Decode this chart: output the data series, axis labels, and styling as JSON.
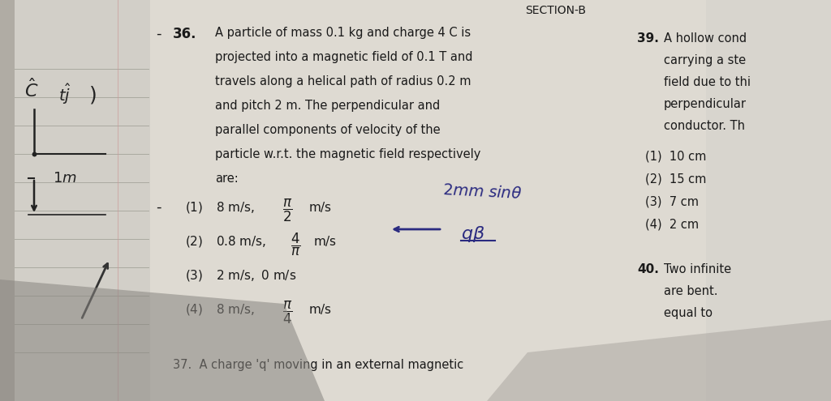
{
  "bg_color": "#b8b5ae",
  "paper_color": "#e8e5de",
  "left_color": "#d0cdc6",
  "section_header": "SECTION-B",
  "q36_num": "36.",
  "dash": "-",
  "question_lines": [
    "A particle of mass 0.1 kg and charge 4 C is",
    "projected into a magnetic field of 0.1 T and",
    "travels along a helical path of radius 0.2 m",
    "and pitch 2 m. The perpendicular and",
    "parallel components of velocity of the",
    "particle w.r.t. the magnetic field respectively",
    "are:"
  ],
  "opt1_pre": "(1)  8 m/s, ",
  "opt1_frac": "\\frac{\\pi}{2}",
  "opt1_post": " m/s",
  "opt2_pre": "(2)  0.8 m/s, ",
  "opt2_frac": "\\frac{4}{\\pi}",
  "opt2_post": " m/s",
  "opt3": "(3)  2 m/s, 0 m/s",
  "opt4_pre": "(4)  8 m/s, ",
  "opt4_frac": "\\frac{\\pi}{4}",
  "opt4_post": " m/s",
  "hw1": "2mm sin",
  "hw_theta": "\\theta",
  "hw2_arrow": true,
  "hw2": "q",
  "hw2b": "\\beta",
  "right_q39_num": "39.",
  "right_q39_lines": [
    "A hollow cond",
    "carrying a ste",
    "field due to thi",
    "perpendicular",
    "conductor. Th"
  ],
  "right_opts": [
    "(1)  10 cm",
    "(2)  15 cm",
    "(3)  7 cm",
    "(4)  2 cm"
  ],
  "right_q40_num": "40.",
  "right_q40_lines": [
    "Two infinite",
    "are bent.",
    "equal to"
  ],
  "bottom_q37": "37.  A charge 'q' moving in an external magnetic",
  "text_color": "#1a1a1a",
  "hw_color": "#2a2a80",
  "line_color": "#888888"
}
